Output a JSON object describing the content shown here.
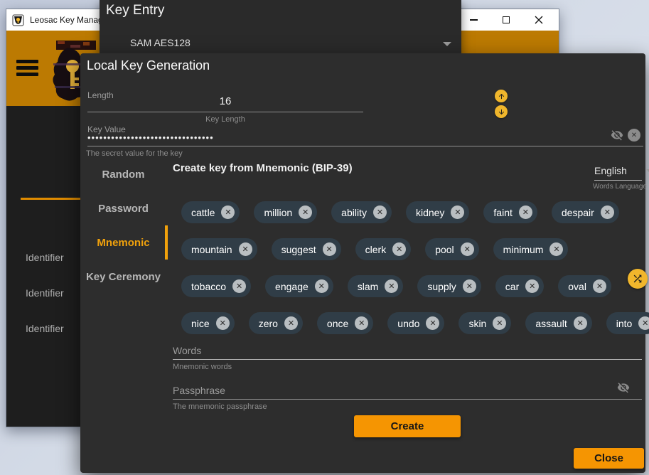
{
  "main_window": {
    "title": "Leosac Key Manager",
    "list_items": [
      {
        "label": "Identifier"
      },
      {
        "label": "Identifier"
      },
      {
        "label": "Identifier"
      }
    ]
  },
  "key_entry_dialog": {
    "title": "Key Entry",
    "key_type_value": "SAM AES128"
  },
  "local_dialog": {
    "title": "Local Key Generation",
    "length_field": {
      "label": "Length",
      "value": "16",
      "hint": "Key Length"
    },
    "key_value_field": {
      "label": "Key Value",
      "masked_value": "••••••••••••••••••••••••••••••••",
      "hint": "The secret value for the key"
    },
    "tabs": [
      {
        "label": "Random",
        "selected": false
      },
      {
        "label": "Password",
        "selected": false
      },
      {
        "label": "Mnemonic",
        "selected": true
      },
      {
        "label": "Key Ceremony",
        "selected": false
      }
    ],
    "mnemonic": {
      "section_title": "Create key from Mnemonic (BIP-39)",
      "language": {
        "value": "English",
        "hint": "Words Language"
      },
      "word_rows": [
        [
          "cattle",
          "million",
          "ability",
          "kidney",
          "faint",
          "despair"
        ],
        [
          "mountain",
          "suggest",
          "clerk",
          "pool",
          "minimum"
        ],
        [
          "tobacco",
          "engage",
          "slam",
          "supply",
          "car",
          "oval"
        ],
        [
          "nice",
          "zero",
          "once",
          "undo",
          "skin",
          "assault",
          "into"
        ]
      ],
      "words_field": {
        "placeholder": "Words",
        "hint": "Mnemonic words"
      },
      "passphrase_field": {
        "placeholder": "Passphrase",
        "hint": "The mnemonic passphrase"
      },
      "create_button": "Create"
    },
    "close_button": "Close"
  },
  "icons": {
    "menu-icon": "hamburger",
    "minimize-icon": "minimize-dash",
    "maximize-icon": "maximize-square",
    "close-icon": "✕",
    "dropdown-arrow-icon": "▾",
    "increment-icon": "↑",
    "decrement-icon": "↓",
    "visibility-off-icon": "eye-slash",
    "clear-icon": "✕",
    "remove-word-icon": "✕",
    "shuffle-icon": "shuffle"
  },
  "colors": {
    "header_orange": "#bc7a02",
    "accent_orange": "#f0a10c",
    "button_orange": "#f59502",
    "circle_button_yellow": "#f0b62c",
    "dialog_bg": "#2d2d2d",
    "window_bg": "#1e1e1e",
    "chip_bg": "#303d47"
  }
}
